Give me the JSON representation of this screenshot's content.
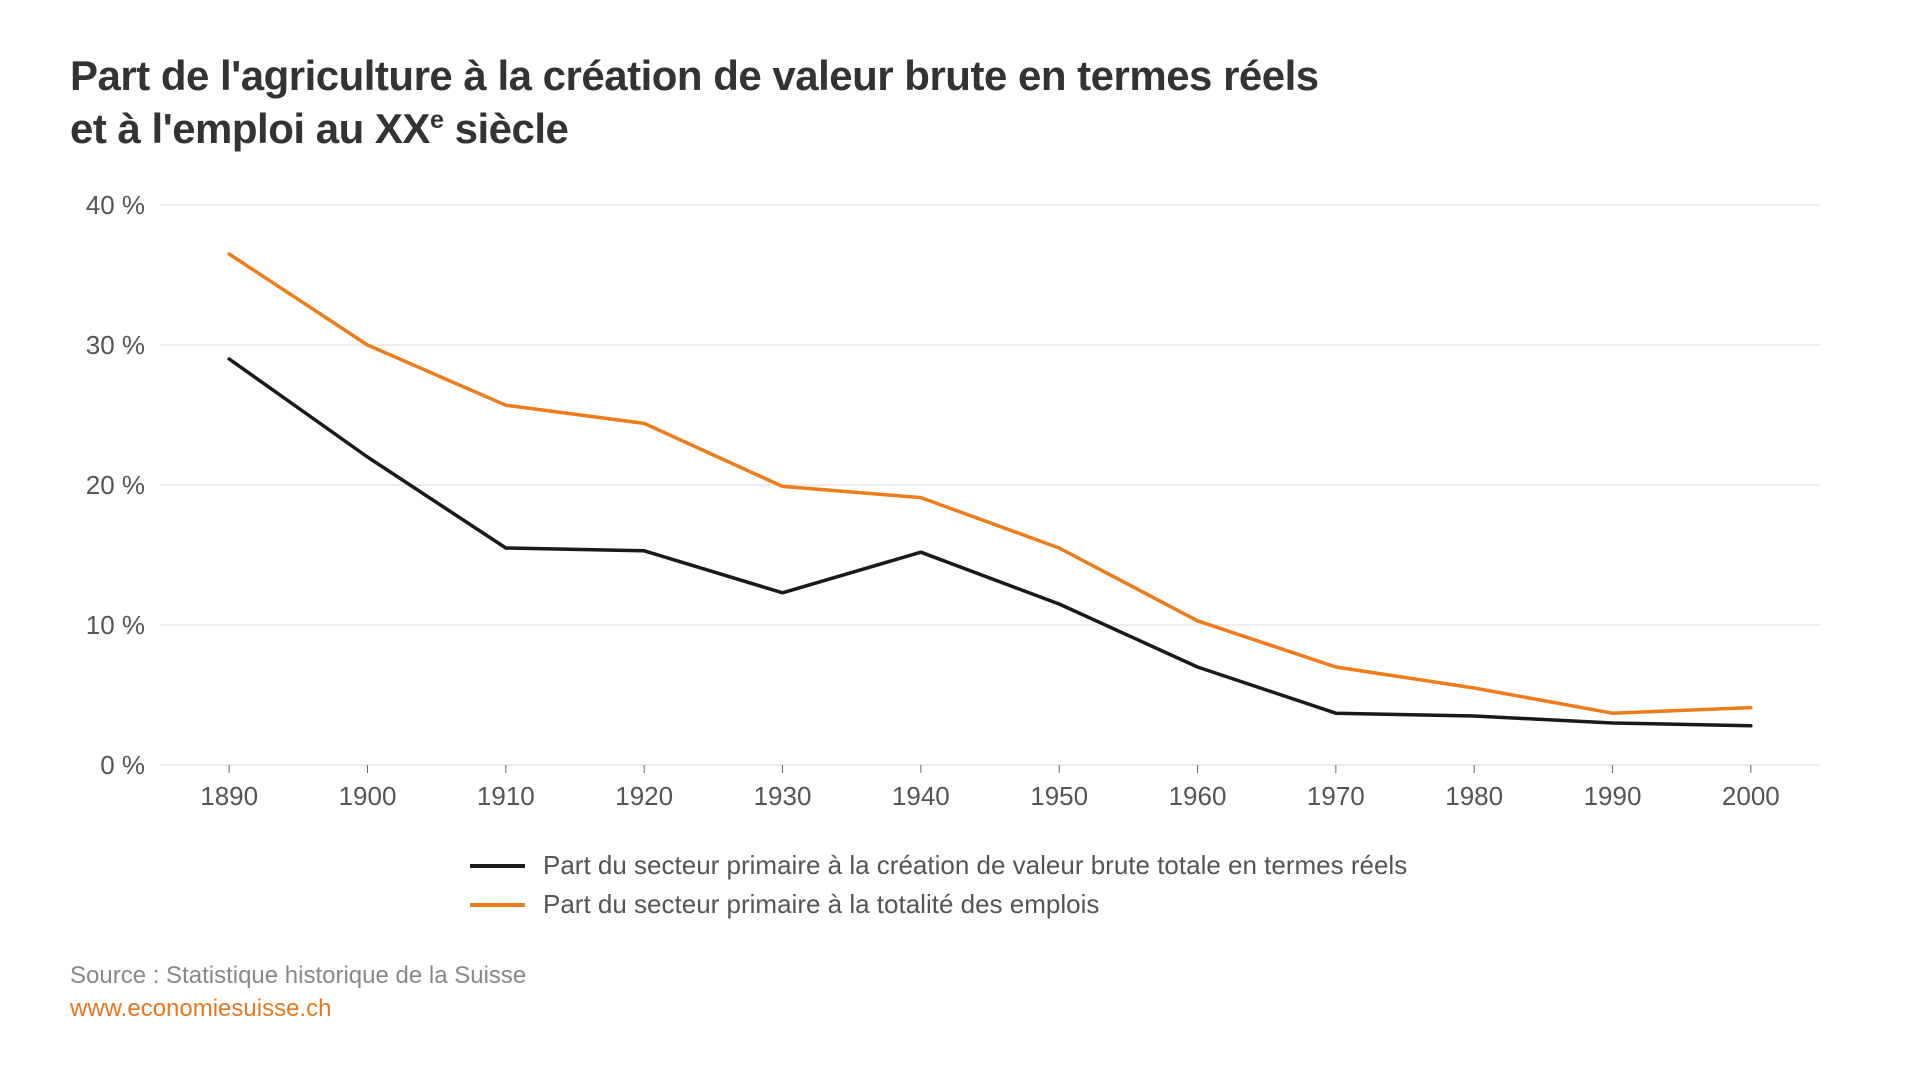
{
  "title_line1": "Part de l'agriculture à la création de valeur brute en termes réels",
  "title_line2": "et à l'emploi au XX",
  "title_sup": "e",
  "title_line2_after": " siècle",
  "chart": {
    "type": "line",
    "background_color": "#ffffff",
    "x_values": [
      1890,
      1900,
      1910,
      1920,
      1930,
      1940,
      1950,
      1960,
      1970,
      1980,
      1990,
      2000
    ],
    "x_labels": [
      "1890",
      "1900",
      "1910",
      "1920",
      "1930",
      "1940",
      "1950",
      "1960",
      "1970",
      "1980",
      "1990",
      "2000"
    ],
    "y_ticks": [
      0,
      10,
      20,
      30,
      40
    ],
    "y_tick_labels": [
      "0 %",
      "10 %",
      "20 %",
      "30 %",
      "40 %"
    ],
    "ylim": [
      0,
      40
    ],
    "xlim": [
      1885,
      2005
    ],
    "grid_color": "#d9d9d9",
    "axis_color": "#666666",
    "tick_font_size": 26,
    "tick_color": "#555555",
    "line_width": 3.5,
    "series": [
      {
        "name": "value_added",
        "label": "Part du secteur primaire à la création de valeur brute totale en termes réels",
        "color": "#1a1a1a",
        "values": [
          29.0,
          22.0,
          15.5,
          15.3,
          12.3,
          15.2,
          11.5,
          7.0,
          3.7,
          3.5,
          3.0,
          2.8
        ]
      },
      {
        "name": "employment",
        "label": "Part du secteur primaire à la totalité des emplois",
        "color": "#ef7c1a",
        "values": [
          36.5,
          30.0,
          25.7,
          24.4,
          19.9,
          19.1,
          15.5,
          10.3,
          7.0,
          5.5,
          3.7,
          4.1
        ]
      }
    ]
  },
  "source_label": "Source : Statistique historique de la Suisse",
  "source_link": "www.economiesuisse.ch"
}
